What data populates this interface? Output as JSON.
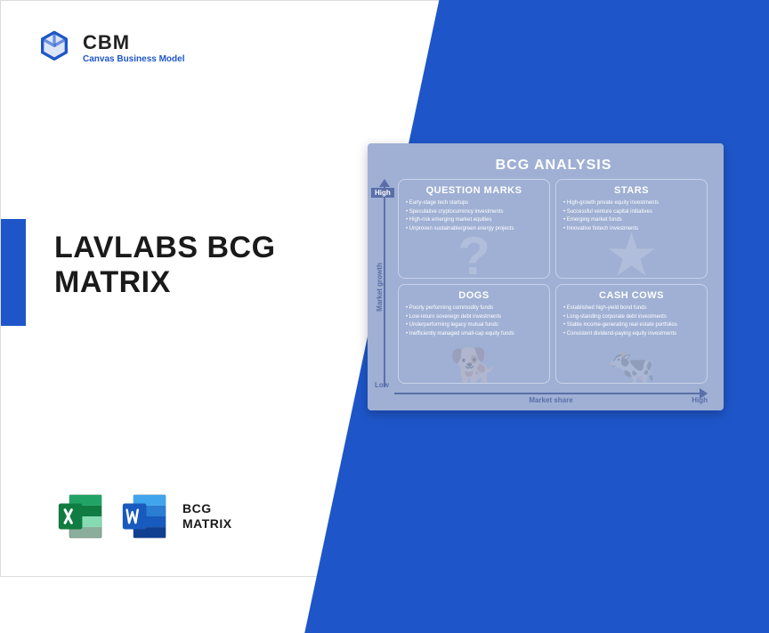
{
  "brand": {
    "title": "CBM",
    "subtitle": "Canvas Business Model"
  },
  "main_title": "LAVLABS BCG\nMATRIX",
  "file_label": "BCG\nMATRIX",
  "colors": {
    "primary_blue": "#1e56c9",
    "card_bg": "#9fb0d4",
    "axis": "#5a6fa8",
    "quad_border": "#c9d2e8",
    "text_dark": "#1a1a1a",
    "white": "#ffffff",
    "excel_dark": "#107c41",
    "excel_light": "#21a366",
    "word_dark": "#185abd",
    "word_light": "#41a5ee"
  },
  "matrix": {
    "title": "BCG ANALYSIS",
    "y_axis": {
      "label": "Market growth",
      "high": "High",
      "low": "Low"
    },
    "x_axis": {
      "label": "Market share",
      "high": "High"
    },
    "quadrants": [
      {
        "key": "question_marks",
        "title": "QUESTION MARKS",
        "watermark": "?",
        "items": [
          "Early-stage tech startups",
          "Speculative cryptocurrency investments",
          "High-risk emerging market equities",
          "Unproven sustainable/green energy projects"
        ]
      },
      {
        "key": "stars",
        "title": "STARS",
        "watermark": "★",
        "items": [
          "High-growth private equity investments",
          "Successful venture capital initiatives",
          "Emerging market funds",
          "Innovative fintech investments"
        ]
      },
      {
        "key": "dogs",
        "title": "DOGS",
        "watermark": "🐕",
        "items": [
          "Poorly performing commodity funds",
          "Low-return sovereign debt investments",
          "Underperforming legacy mutual funds",
          "Inefficiently managed small-cap equity funds"
        ]
      },
      {
        "key": "cash_cows",
        "title": "CASH COWS",
        "watermark": "🐄",
        "items": [
          "Established high-yield bond funds",
          "Long-standing corporate debt investments",
          "Stable income-generating real estate portfolios",
          "Consistent dividend-paying equity investments"
        ]
      }
    ]
  },
  "typography": {
    "main_title_fontsize": 34,
    "matrix_title_fontsize": 16,
    "quad_title_fontsize": 11,
    "quad_item_fontsize": 6,
    "axis_label_fontsize": 8
  }
}
